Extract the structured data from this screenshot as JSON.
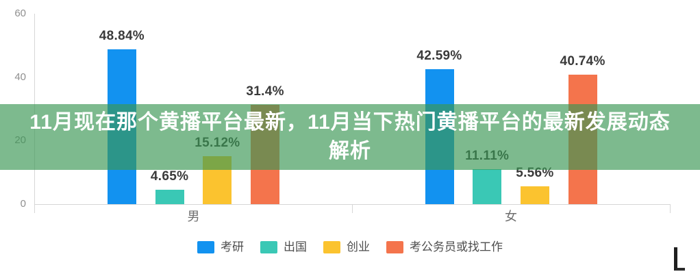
{
  "overlay": {
    "line1": "11月现在那个黄播平台最新，11月当下热门黄播平台的最新发展动态",
    "line2": "解析",
    "background": "rgba(58,151,83,0.66)",
    "text_color": "#ffffff"
  },
  "chart_data": {
    "type": "bar",
    "categories": [
      "男",
      "女"
    ],
    "series": [
      {
        "name": "考研",
        "color": "#1292f0",
        "values": [
          48.84,
          42.59
        ],
        "labels": [
          "48.84%",
          "42.59%"
        ]
      },
      {
        "name": "出国",
        "color": "#3ac8b5",
        "values": [
          4.65,
          11.11
        ],
        "labels": [
          "4.65%",
          "11.11%"
        ]
      },
      {
        "name": "创业",
        "color": "#fbc32f",
        "values": [
          15.12,
          5.56
        ],
        "labels": [
          "15.12%",
          "5.56%"
        ]
      },
      {
        "name": "考公务员或找工作",
        "color": "#f4744c",
        "values": [
          31.4,
          40.74
        ],
        "labels": [
          "31.4%",
          "40.74%"
        ]
      }
    ],
    "ylim": [
      0,
      60
    ],
    "yticks": [
      0,
      20,
      40,
      60
    ],
    "grid": false,
    "legend_position": "bottom",
    "value_labels": true,
    "axis_color": "#d6d6d6",
    "tick_text_color": "#8f8f8f",
    "value_label_color": "#3a3a3a",
    "category_label_color": "#6e6e6e",
    "legend_text_color": "#4d4d4d"
  },
  "misc": {
    "partial_glyph": "L"
  }
}
